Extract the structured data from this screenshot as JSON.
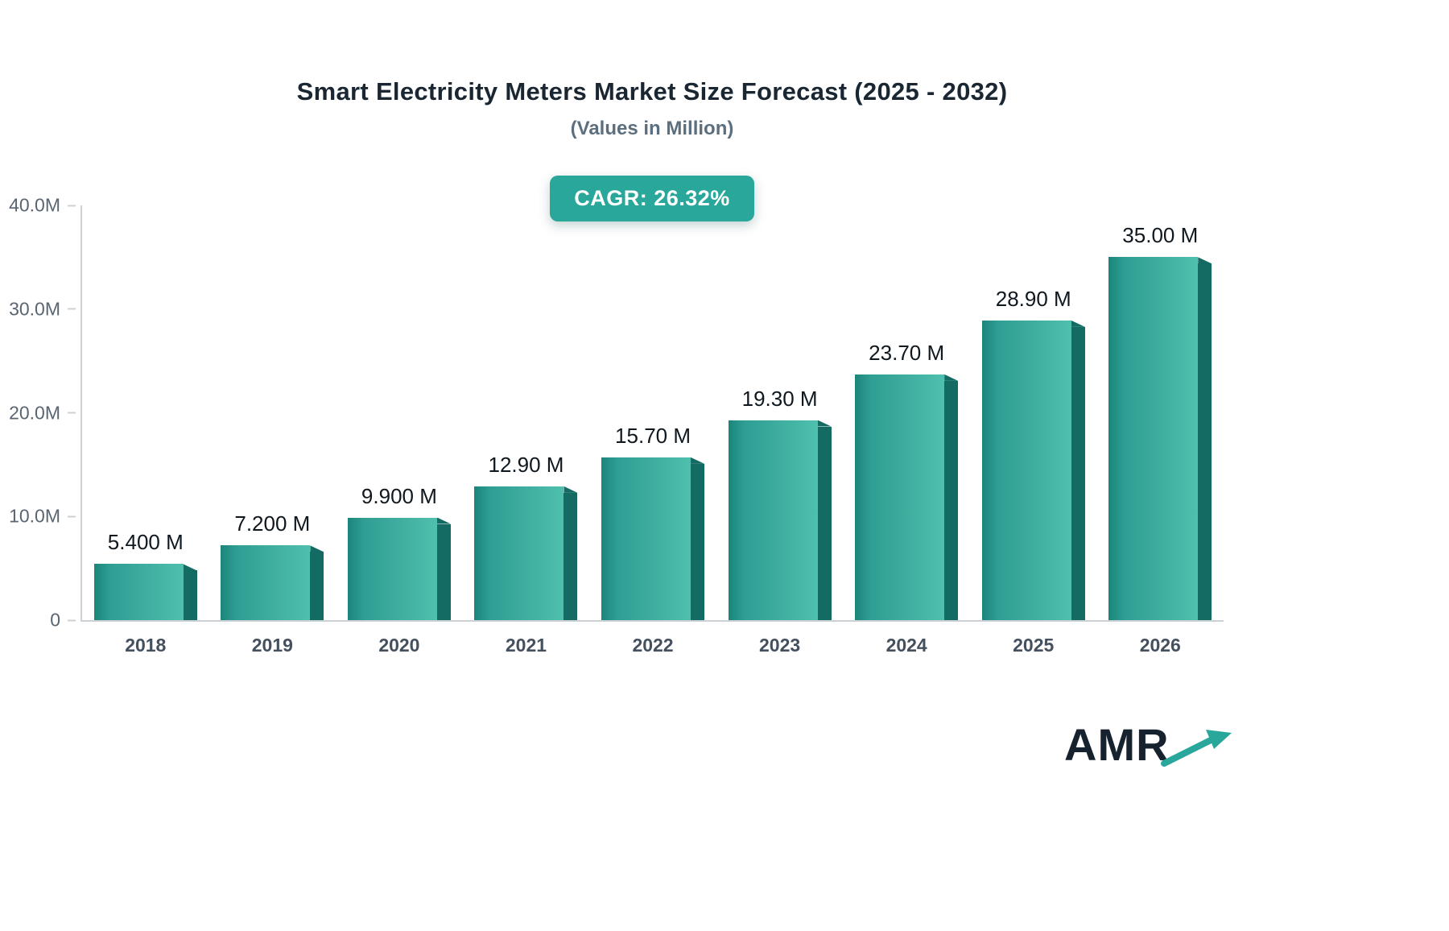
{
  "chart_data": {
    "type": "bar",
    "title": "Smart Electricity Meters Market Size Forecast (2025 - 2032)",
    "subtitle": "(Values in Million)",
    "badge": "CAGR: 26.32%",
    "categories": [
      "2018",
      "2019",
      "2020",
      "2021",
      "2022",
      "2023",
      "2024",
      "2025",
      "2026"
    ],
    "values": [
      5.4,
      7.2,
      9.9,
      12.9,
      15.7,
      19.3,
      23.7,
      28.9,
      35.0
    ],
    "bar_labels": [
      "5.400 M",
      "7.200 M",
      "9.900 M",
      "12.90 M",
      "15.70 M",
      "19.30 M",
      "23.70 M",
      "28.90 M",
      "35.00 M"
    ],
    "y_ticks": [
      {
        "label": "40.0M",
        "value": 40
      },
      {
        "label": "30.0M",
        "value": 30
      },
      {
        "label": "20.0M",
        "value": 20
      },
      {
        "label": "10.0M",
        "value": 10
      },
      {
        "label": "0",
        "value": 0
      }
    ],
    "ylim": [
      0,
      40
    ],
    "xlabel": "",
    "ylabel": "",
    "grid": false,
    "legend": "none",
    "colors": {
      "accent": "#2aa79b",
      "bar_face_dark": "#1b857b",
      "bar_face_mid": "#2f9e93",
      "bar_face_light": "#4fbfae",
      "bar_side": "#136b63",
      "axis": "#ccd1d6",
      "title": "#1a2733",
      "subtitle": "#5c6f7f",
      "value_label": "#10181f",
      "tick_label": "#5a6572",
      "x_label": "#44505e",
      "logo": "#16222e"
    }
  },
  "logo": {
    "text": "AMR"
  }
}
